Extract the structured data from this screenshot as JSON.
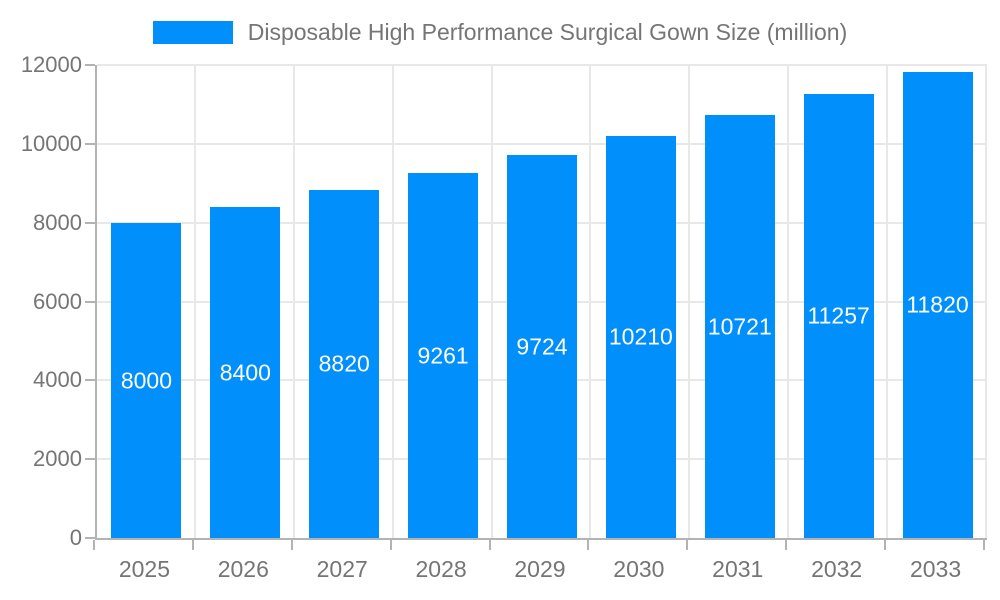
{
  "chart_data": {
    "type": "bar",
    "title": "Disposable High Performance Surgical Gown Size (million)",
    "legend_position": "top",
    "categories": [
      "2025",
      "2026",
      "2027",
      "2028",
      "2029",
      "2030",
      "2031",
      "2032",
      "2033"
    ],
    "series": [
      {
        "name": "Disposable High Performance Surgical Gown Size (million)",
        "values": [
          8000,
          8400,
          8820,
          9261,
          9724,
          10210,
          10721,
          11257,
          11820
        ]
      }
    ],
    "bar_value_labels": [
      "8000",
      "8400",
      "8820",
      "9261",
      "9724",
      "10210",
      "10721",
      "11257",
      "11820"
    ],
    "xlabel": "",
    "ylabel": "",
    "ylim": [
      0,
      12000
    ],
    "yticks": [
      0,
      2000,
      4000,
      6000,
      8000,
      10000,
      12000
    ],
    "grid": true,
    "colors": {
      "bar": "#008FFB",
      "bar_label": "#ffffff",
      "axis_text": "#757575",
      "axis_line": "#b3b3b3",
      "gridline": "#e8e8e8",
      "background": "#ffffff"
    }
  }
}
